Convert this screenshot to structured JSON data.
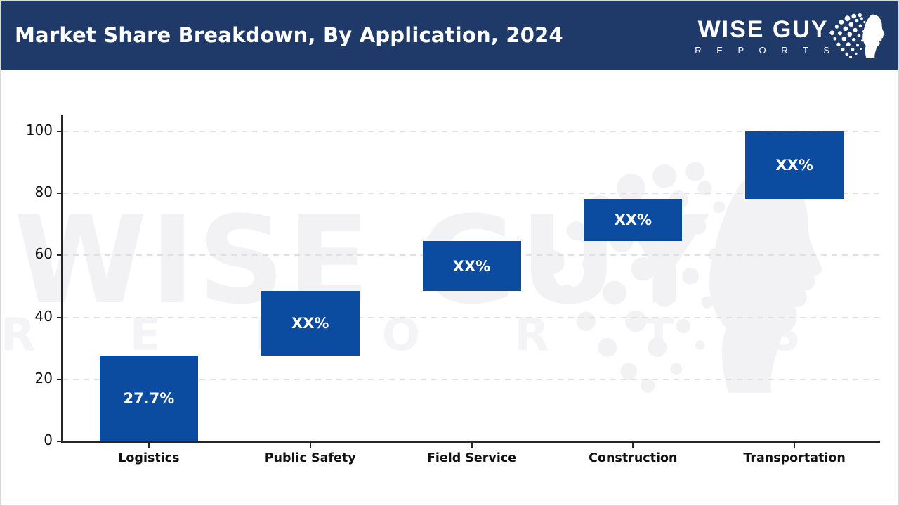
{
  "header": {
    "title": "Market Share Breakdown, By Application, 2024",
    "logo": {
      "name": "WISE GUY",
      "tagline": "R E P O R T S"
    }
  },
  "watermark": {
    "line1": "WISE GUY",
    "line2": "R E P O R T S"
  },
  "chart_data": {
    "type": "bar",
    "subtype": "floating-waterfall",
    "title": "Market Share Breakdown, By Application, 2024",
    "categories": [
      "Logistics",
      "Public Safety",
      "Field Service",
      "Construction",
      "Transportation"
    ],
    "bars": [
      {
        "category": "Logistics",
        "start": 0,
        "end": 27.7,
        "label": "27.7%"
      },
      {
        "category": "Public Safety",
        "start": 27.7,
        "end": 48.5,
        "label": "XX%"
      },
      {
        "category": "Field Service",
        "start": 48.5,
        "end": 64.6,
        "label": "XX%"
      },
      {
        "category": "Construction",
        "start": 64.6,
        "end": 78.3,
        "label": "XX%"
      },
      {
        "category": "Transportation",
        "start": 78.3,
        "end": 100,
        "label": "XX%"
      }
    ],
    "yticks": [
      0,
      20,
      40,
      60,
      80,
      100
    ],
    "ylim": [
      0,
      105
    ],
    "xlabel": "",
    "ylabel": "",
    "grid": "horizontal-dashed",
    "legend": "none",
    "bar_color": "#0b4ba0",
    "bar_label_color": "#ffffff"
  },
  "colors": {
    "header_bg": "#1f3a68",
    "bar": "#0b4ba0",
    "axis": "#262626",
    "gridline": "#e0e0e0",
    "watermark": "#f2f2f4",
    "page_border": "#d9d9d9"
  }
}
